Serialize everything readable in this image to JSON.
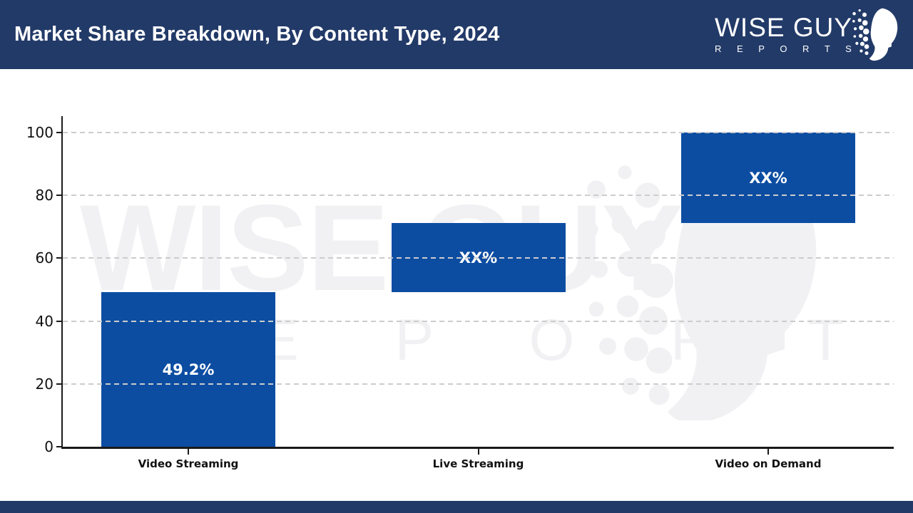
{
  "header": {
    "title": "Market Share Breakdown, By Content Type, 2024",
    "logo": {
      "name": "WISE GUY",
      "sub": "R E P O R T S"
    }
  },
  "watermark": {
    "line1": "WISE GUY",
    "line2": "R E P O R T S"
  },
  "colors": {
    "header_bg": "#223a68",
    "bar": "#0c4da2",
    "bar_label": "#ffffff",
    "grid": "#cccccc",
    "axis": "#1a1a1a",
    "watermark": "#f1f1f3",
    "title_text": "#ffffff",
    "tick_text": "#111111"
  },
  "chart_data": {
    "type": "bar",
    "variant": "floating-segment (waterfall style)",
    "title": "Market Share Breakdown, By Content Type, 2024",
    "categories": [
      "Video Streaming",
      "Live Streaming",
      "Video on Demand"
    ],
    "segments": [
      {
        "category": "Video Streaming",
        "start": 0,
        "end": 49.2,
        "label": "49.2%"
      },
      {
        "category": "Live Streaming",
        "start": 49.2,
        "end": 71.2,
        "label": "XX%"
      },
      {
        "category": "Video on Demand",
        "start": 71.2,
        "end": 100,
        "label": "XX%"
      }
    ],
    "ylabel": "",
    "xlabel": "",
    "ylim": [
      0,
      100
    ],
    "yticks": [
      0,
      20,
      40,
      60,
      80,
      100
    ],
    "grid": "horizontal-dashed",
    "legend": "none"
  }
}
